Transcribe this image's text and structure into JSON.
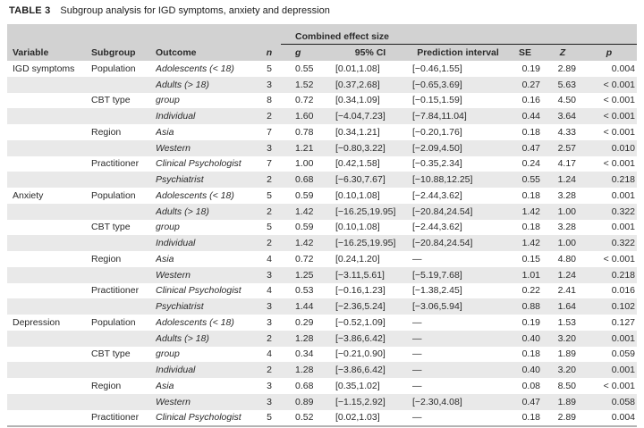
{
  "table": {
    "label": "TABLE 3",
    "title": "Subgroup analysis for IGD symptoms, anxiety and depression",
    "group_header": "Combined effect size",
    "columns": [
      "Variable",
      "Subgroup",
      "Outcome",
      "n",
      "g",
      "95% CI",
      "Prediction interval",
      "SE",
      "Z",
      "p"
    ],
    "rows": [
      [
        "IGD symptoms",
        "Population",
        "Adolescents (< 18)",
        "5",
        "0.55",
        "[0.01,1.08]",
        "[−0.46,1.55]",
        "0.19",
        "2.89",
        "0.004"
      ],
      [
        "",
        "",
        "Adults (> 18)",
        "3",
        "1.52",
        "[0.37,2.68]",
        "[−0.65,3.69]",
        "0.27",
        "5.63",
        "< 0.001"
      ],
      [
        "",
        "CBT type",
        "group",
        "8",
        "0.72",
        "[0.34,1.09]",
        "[−0.15,1.59]",
        "0.16",
        "4.50",
        "< 0.001"
      ],
      [
        "",
        "",
        "Individual",
        "2",
        "1.60",
        "[−4.04,7.23]",
        "[−7.84,11.04]",
        "0.44",
        "3.64",
        "< 0.001"
      ],
      [
        "",
        "Region",
        "Asia",
        "7",
        "0.78",
        "[0.34,1.21]",
        "[−0.20,1.76]",
        "0.18",
        "4.33",
        "< 0.001"
      ],
      [
        "",
        "",
        "Western",
        "3",
        "1.21",
        "[−0.80,3.22]",
        "[−2.09,4.50]",
        "0.47",
        "2.57",
        "0.010"
      ],
      [
        "",
        "Practitioner",
        "Clinical Psychologist",
        "7",
        "1.00",
        "[0.42,1.58]",
        "[−0.35,2.34]",
        "0.24",
        "4.17",
        "< 0.001"
      ],
      [
        "",
        "",
        "Psychiatrist",
        "2",
        "0.68",
        "[−6.30,7.67]",
        "[−10.88,12.25]",
        "0.55",
        "1.24",
        "0.218"
      ],
      [
        "Anxiety",
        "Population",
        "Adolescents (< 18)",
        "5",
        "0.59",
        "[0.10,1.08]",
        "[−2.44,3.62]",
        "0.18",
        "3.28",
        "0.001"
      ],
      [
        "",
        "",
        "Adults (> 18)",
        "2",
        "1.42",
        "[−16.25,19.95]",
        "[−20.84,24.54]",
        "1.42",
        "1.00",
        "0.322"
      ],
      [
        "",
        "CBT type",
        "group",
        "5",
        "0.59",
        "[0.10,1.08]",
        "[−2.44,3.62]",
        "0.18",
        "3.28",
        "0.001"
      ],
      [
        "",
        "",
        "Individual",
        "2",
        "1.42",
        "[−16.25,19.95]",
        "[−20.84,24.54]",
        "1.42",
        "1.00",
        "0.322"
      ],
      [
        "",
        "Region",
        "Asia",
        "4",
        "0.72",
        "[0.24,1.20]",
        "—",
        "0.15",
        "4.80",
        "< 0.001"
      ],
      [
        "",
        "",
        "Western",
        "3",
        "1.25",
        "[−3.11,5.61]",
        "[−5.19,7.68]",
        "1.01",
        "1.24",
        "0.218"
      ],
      [
        "",
        "Practitioner",
        "Clinical Psychologist",
        "4",
        "0.53",
        "[−0.16,1.23]",
        "[−1.38,2.45]",
        "0.22",
        "2.41",
        "0.016"
      ],
      [
        "",
        "",
        "Psychiatrist",
        "3",
        "1.44",
        "[−2.36,5.24]",
        "[−3.06,5.94]",
        "0.88",
        "1.64",
        "0.102"
      ],
      [
        "Depression",
        "Population",
        "Adolescents (< 18)",
        "3",
        "0.29",
        "[−0.52,1.09]",
        "—",
        "0.19",
        "1.53",
        "0.127"
      ],
      [
        "",
        "",
        "Adults (> 18)",
        "2",
        "1.28",
        "[−3.86,6.42]",
        "—",
        "0.40",
        "3.20",
        "0.001"
      ],
      [
        "",
        "CBT type",
        "group",
        "4",
        "0.34",
        "[−0.21,0.90]",
        "—",
        "0.18",
        "1.89",
        "0.059"
      ],
      [
        "",
        "",
        "Individual",
        "2",
        "1.28",
        "[−3.86,6.42]",
        "—",
        "0.40",
        "3.20",
        "0.001"
      ],
      [
        "",
        "Region",
        "Asia",
        "3",
        "0.68",
        "[0.35,1.02]",
        "—",
        "0.08",
        "8.50",
        "< 0.001"
      ],
      [
        "",
        "",
        "Western",
        "3",
        "0.89",
        "[−1.15,2.92]",
        "[−2.30,4.08]",
        "0.47",
        "1.89",
        "0.058"
      ],
      [
        "",
        "Practitioner",
        "Clinical Psychologist",
        "5",
        "0.52",
        "[0.02,1.03]",
        "—",
        "0.18",
        "2.89",
        "0.004"
      ]
    ]
  },
  "colors": {
    "header_band": "#d2d2d2",
    "row_alt": "#e9e9e9",
    "rule_dark": "#1f1f1f",
    "rule_bottom": "#b3b3b3"
  }
}
